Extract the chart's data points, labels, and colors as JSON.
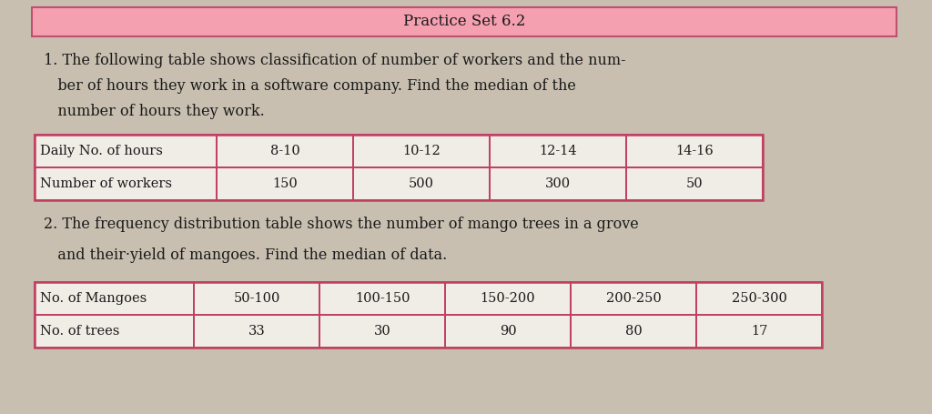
{
  "title": "Practice Set 6.2",
  "title_bg": "#f4a0b0",
  "title_border": "#c05070",
  "bg_color": "#c8bfb0",
  "text_color": "#1a1a1a",
  "para1_line1": "1. The following table shows classification of number of workers and the num-",
  "para1_line2": "   ber of hours they work in a software company. Find the median of the",
  "para1_line3": "   number of hours they work.",
  "table1_header": [
    "Daily No. of hours",
    "8-10",
    "10-12",
    "12-14",
    "14-16"
  ],
  "table1_row": [
    "Number of workers",
    "150",
    "500",
    "300",
    "50"
  ],
  "para2_line1": "2. The frequency distribution table shows the number of mango trees in a grove",
  "para2_line2": "   and their·yield of mangoes. Find the median of data.",
  "table2_header": [
    "No. of Mangoes",
    "50-100",
    "100-150",
    "150-200",
    "200-250",
    "250-300"
  ],
  "table2_row": [
    "No. of trees",
    "33",
    "30",
    "90",
    "80",
    "17"
  ],
  "table_border_color": "#c04060",
  "font_size_title": 12,
  "font_size_text": 11.5,
  "font_size_table": 10.5,
  "fig_width": 10.24,
  "fig_height": 4.55,
  "dpi": 100
}
